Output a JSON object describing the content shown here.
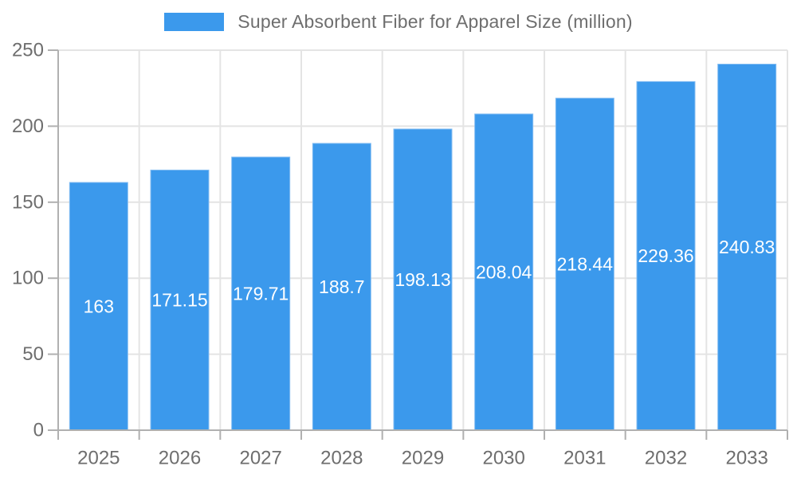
{
  "chart_data": {
    "type": "bar",
    "title": "Super Absorbent Fiber for Apparel Size (million)",
    "legend_position": "top",
    "categories": [
      "2025",
      "2026",
      "2027",
      "2028",
      "2029",
      "2030",
      "2031",
      "2032",
      "2033"
    ],
    "series": [
      {
        "name": "Super Absorbent Fiber for Apparel Size (million)",
        "values": [
          163,
          171.15,
          179.71,
          188.7,
          198.13,
          208.04,
          218.44,
          229.36,
          240.83
        ],
        "value_labels": [
          "163",
          "171.15",
          "179.71",
          "188.7",
          "198.13",
          "208.04",
          "218.44",
          "229.36",
          "240.83"
        ]
      }
    ],
    "xlabel": "",
    "ylabel": "",
    "ylim": [
      0,
      250
    ],
    "ytick_interval": 50,
    "ytick_labels": [
      "0",
      "50",
      "100",
      "150",
      "200",
      "250"
    ],
    "grid": true,
    "value_label_position": "middle-of-bar",
    "colors": {
      "bar_fill": "#3B99EC",
      "bar_edge": "#85BDF2",
      "grid_line": "#e4e4e4",
      "axis_line": "#b0b0b0",
      "axis_text": "#6e6e6e",
      "value_label_text": "#ffffff",
      "background": "#ffffff"
    }
  }
}
